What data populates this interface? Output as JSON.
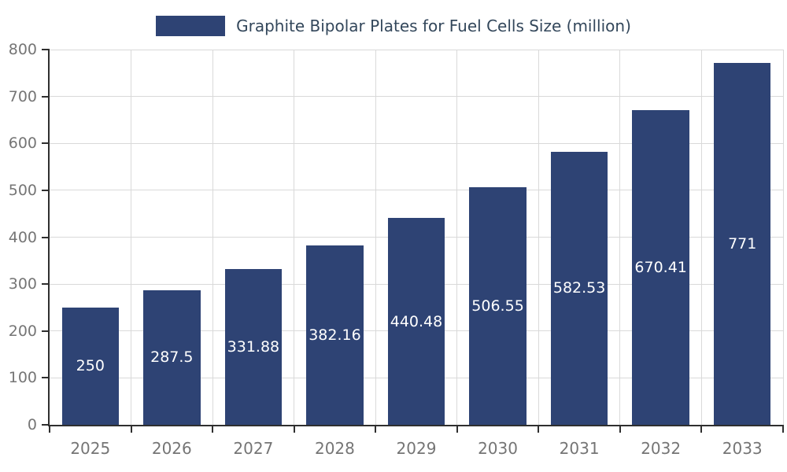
{
  "chart_data": {
    "type": "bar",
    "title": "Graphite Bipolar Plates for Fuel Cells Size (million)",
    "categories": [
      "2025",
      "2026",
      "2027",
      "2028",
      "2029",
      "2030",
      "2031",
      "2032",
      "2033"
    ],
    "values": [
      250,
      287.5,
      331.88,
      382.16,
      440.48,
      506.55,
      582.53,
      670.41,
      771
    ],
    "value_labels": [
      "250",
      "287.5",
      "331.88",
      "382.16",
      "440.48",
      "506.55",
      "582.53",
      "670.41",
      "771"
    ],
    "xlabel": "",
    "ylabel": "",
    "ylim": [
      0,
      800
    ],
    "yticks": [
      0,
      100,
      200,
      300,
      400,
      500,
      600,
      700,
      800
    ],
    "grid": true,
    "legend_position": "top",
    "colors": {
      "bar": "#2e4374",
      "value_label": "#ffffff",
      "tick_label": "#757575",
      "grid": "#d9d9d9",
      "axis": "#2f2f2f",
      "title": "#33475b",
      "background": "#ffffff"
    }
  }
}
